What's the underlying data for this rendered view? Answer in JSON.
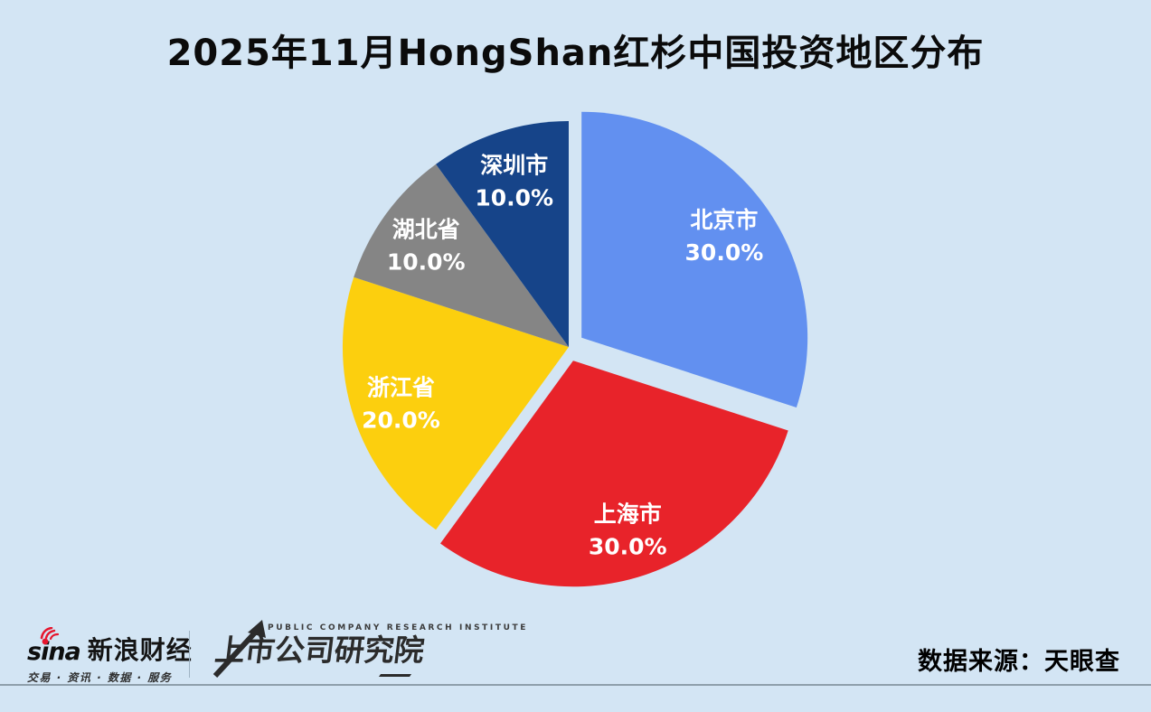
{
  "title": "2025年11月HongShan红杉中国投资地区分布",
  "chart_data": {
    "type": "pie",
    "title": "2025年11月HongShan红杉中国投资地区分布",
    "direction": "clockwise",
    "start_angle_deg": 0,
    "label_color": "#FFFFFF",
    "background": "#D3E5F4",
    "slices": [
      {
        "label": "北京市",
        "value": 30.0,
        "pct_label": "30.0%",
        "color": "#6290F0",
        "explode": 0.07
      },
      {
        "label": "上海市",
        "value": 30.0,
        "pct_label": "30.0%",
        "color": "#E8232A",
        "explode": 0.064
      },
      {
        "label": "浙江省",
        "value": 20.0,
        "pct_label": "20.0%",
        "color": "#FCCF0E",
        "explode": 0
      },
      {
        "label": "湖北省",
        "value": 10.0,
        "pct_label": "10.0%",
        "color": "#858585",
        "explode": 0
      },
      {
        "label": "深圳市",
        "value": 10.0,
        "pct_label": "10.0%",
        "color": "#164489",
        "explode": 0
      }
    ]
  },
  "footer": {
    "sina": {
      "wordmark": "sina",
      "brand": "新浪财经",
      "tagline": "交易 · 资讯 · 数据 · 服务"
    },
    "institute": {
      "en": "PUBLIC COMPANY RESEARCH INSTITUTE",
      "zh": "上市公司研究院"
    },
    "source": "数据来源：天眼查"
  },
  "colors": {
    "background": "#D3E5F4",
    "title_text": "#0B0B0B",
    "sina_red": "#E6152D",
    "logo_dark": "#2B2B2B",
    "divider": "#9FB4C4",
    "bottom_rule": "#8E9FAB"
  }
}
